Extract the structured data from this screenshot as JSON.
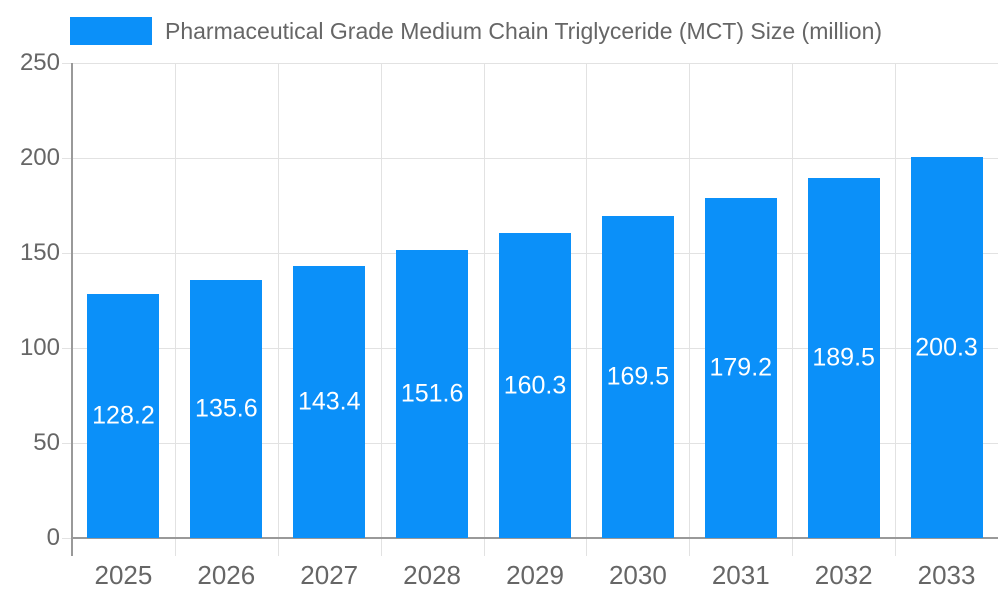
{
  "chart_data": {
    "type": "bar",
    "title": "Pharmaceutical Grade Medium Chain Triglyceride (MCT) Size (million)",
    "categories": [
      "2025",
      "2026",
      "2027",
      "2028",
      "2029",
      "2030",
      "2031",
      "2032",
      "2033"
    ],
    "values": [
      128.2,
      135.6,
      143.4,
      151.6,
      160.3,
      169.5,
      179.2,
      189.5,
      200.3
    ],
    "xlabel": "",
    "ylabel": "",
    "ylim": [
      0,
      250
    ],
    "yticks": [
      0,
      50,
      100,
      150,
      200,
      250
    ],
    "grid": true,
    "legend_position": "top",
    "legend_label": "Pharmaceutical Grade Medium Chain Triglyceride (MCT) Size (million)",
    "colors": {
      "bar": "#0b90f9",
      "bar_value_label": "#ffffff",
      "axis_text": "#666666",
      "legend_text": "#666666",
      "gridline": "#e2e2e2",
      "axis_line": "#999999",
      "background": "#ffffff"
    }
  }
}
